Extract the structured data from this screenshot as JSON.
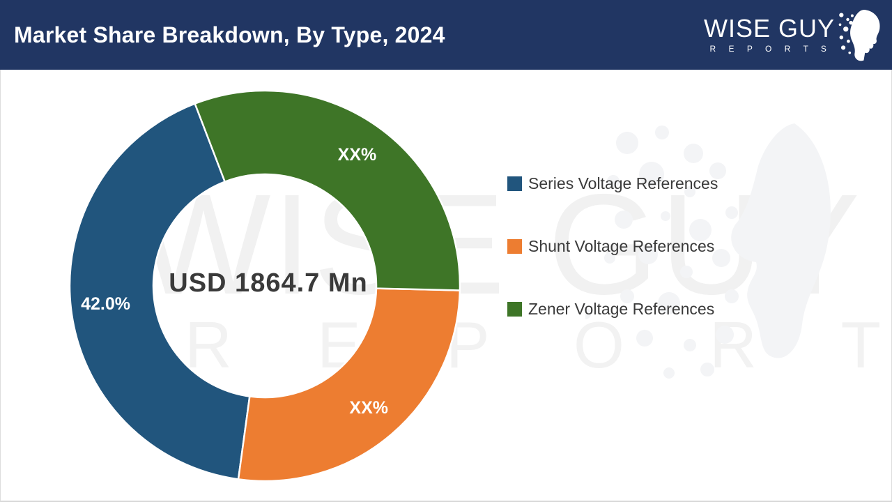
{
  "header": {
    "title": "Market Share Breakdown, By Type, 2024",
    "logo": {
      "line1": "WISE GUY",
      "line2": "R E P O R T S"
    }
  },
  "watermark": {
    "line1": "WISE GUY",
    "line2": "R E P O R T S"
  },
  "chart_data": {
    "type": "pie",
    "donut": true,
    "title": "Market Share Breakdown, By Type, 2024",
    "center_label": "USD 1864.7 Mn",
    "start_angle_deg": 111,
    "direction": "counterclockwise",
    "legend_position": "right",
    "categories": [
      "Series Voltage References",
      "Shunt Voltage References",
      "Zener Voltage References"
    ],
    "slices": [
      {
        "label": "Series Voltage References",
        "value_pct": 42.0,
        "display_pct": "42.0%",
        "color": "#21557D"
      },
      {
        "label": "Shunt Voltage References",
        "value_pct": 26.8,
        "display_pct": "XX%",
        "color": "#ED7D31"
      },
      {
        "label": "Zener Voltage References",
        "value_pct": 31.2,
        "display_pct": "XX%",
        "color": "#3E7527"
      }
    ]
  },
  "colors": {
    "header_bg": "#213663",
    "text_dark": "#3A3A3A",
    "watermark": "#F1F1F1",
    "border": "#D9D9D9",
    "slice_divider": "#FFFFFF"
  }
}
